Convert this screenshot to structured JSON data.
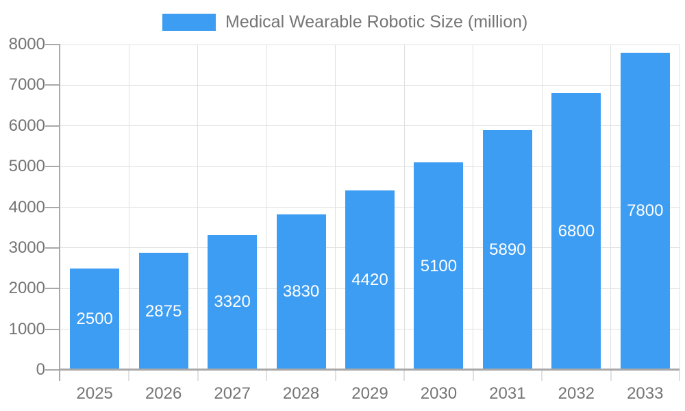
{
  "chart_data": {
    "type": "bar",
    "title": "Medical Wearable Robotic Size (million)",
    "series_name": "Medical Wearable Robotic Size (million)",
    "categories": [
      "2025",
      "2026",
      "2027",
      "2028",
      "2029",
      "2030",
      "2031",
      "2032",
      "2033"
    ],
    "values": [
      2500,
      2875,
      3320,
      3830,
      4420,
      5100,
      5890,
      6800,
      7800
    ],
    "value_labels": [
      "2500",
      "2875",
      "3320",
      "3830",
      "4420",
      "5100",
      "5890",
      "6800",
      "7800"
    ],
    "yticks": [
      "0",
      "1000",
      "2000",
      "3000",
      "4000",
      "5000",
      "6000",
      "7000",
      "8000"
    ],
    "ylim": [
      0,
      8000
    ],
    "xlabel": "",
    "ylabel": "",
    "grid": true,
    "legend_position": "top",
    "colors": {
      "bar": "#3d9df3",
      "axis_line": "#a8a8a8",
      "gridline": "#e0e0e0",
      "axis_text": "#757575",
      "value_text": "#ffffff",
      "background": "#ffffff"
    }
  }
}
